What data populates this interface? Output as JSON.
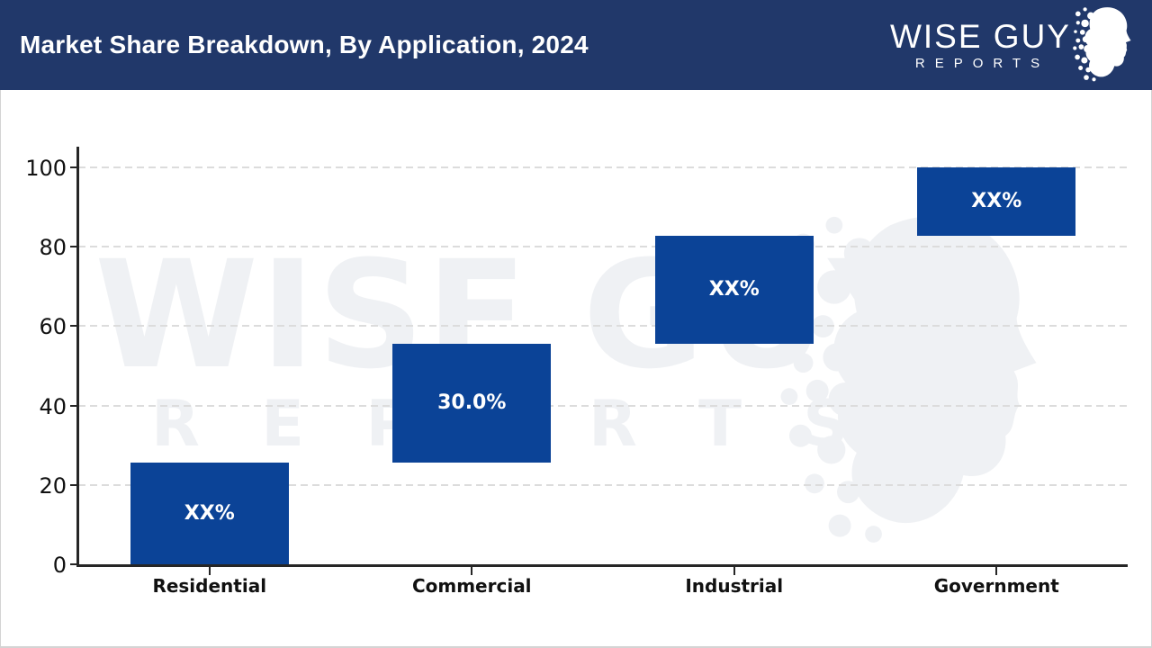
{
  "header": {
    "title": "Market Share Breakdown, By Application, 2024",
    "bg_color": "#21386a",
    "logo": {
      "line1": "WISE GUY",
      "line2": "REPORTS"
    }
  },
  "watermark": {
    "line1": "WISE GUY",
    "line2": "R E P O R T S",
    "color": "#eff1f4"
  },
  "chart_data": {
    "type": "bar",
    "subtype": "waterfall-floating-segments",
    "title": "Market Share Breakdown, By Application, 2024",
    "categories": [
      "Residential",
      "Commercial",
      "Industrial",
      "Government"
    ],
    "segments": [
      {
        "category": "Residential",
        "start": 0,
        "end": 25.6,
        "label": "XX%"
      },
      {
        "category": "Commercial",
        "start": 25.6,
        "end": 55.6,
        "label": "30.0%"
      },
      {
        "category": "Industrial",
        "start": 55.6,
        "end": 82.8,
        "label": "XX%"
      },
      {
        "category": "Government",
        "start": 82.8,
        "end": 100.0,
        "label": "XX%"
      }
    ],
    "xlabel": "",
    "ylabel": "",
    "ylim": [
      0,
      100
    ],
    "yticks": [
      0,
      20,
      40,
      60,
      80,
      100
    ],
    "grid": "horizontal dashed",
    "grid_color": "#dcdcdc",
    "bar_color": "#0b4397",
    "bar_label_color": "#ffffff",
    "axis_color": "#262626",
    "tick_label_color": "#111111",
    "legend": "none"
  }
}
